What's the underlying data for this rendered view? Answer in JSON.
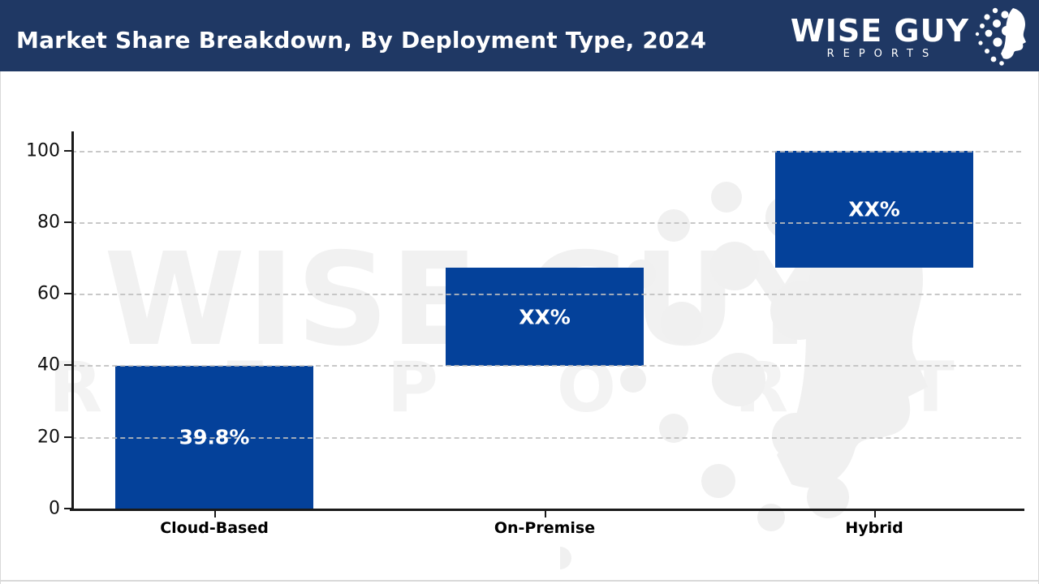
{
  "header": {
    "title": "Market Share Breakdown, By Deployment Type, 2024",
    "logo": {
      "line1": "WISE GUY",
      "line2": "REPORTS"
    }
  },
  "watermark": {
    "line1": "WISE GUY",
    "line2": "REPORTS",
    "color": "#f1f1f1"
  },
  "chart_data": {
    "type": "bar",
    "subtype": "floating-stacked-percentage-waterfall",
    "title": "Market Share Breakdown, By Deployment Type, 2024",
    "categories": [
      "Cloud-Based",
      "On-Premise",
      "Hybrid"
    ],
    "series": [
      {
        "name": "Market Share",
        "ranges": [
          [
            0,
            39.8
          ],
          [
            39.8,
            67.3
          ],
          [
            67.3,
            100
          ]
        ],
        "labels": [
          "39.8%",
          "XX%",
          "XX%"
        ]
      }
    ],
    "xlabel": "",
    "ylabel": "",
    "ylim": [
      0,
      100
    ],
    "yticks": [
      0,
      20,
      40,
      60,
      80,
      100
    ],
    "grid": "horizontal-dashed",
    "grid_on": true,
    "legend": "none",
    "bar_color": "#04419a",
    "bar_label_color": "#ffffff",
    "axis_color": "#1a1a1a",
    "header_color": "#1f3864"
  }
}
